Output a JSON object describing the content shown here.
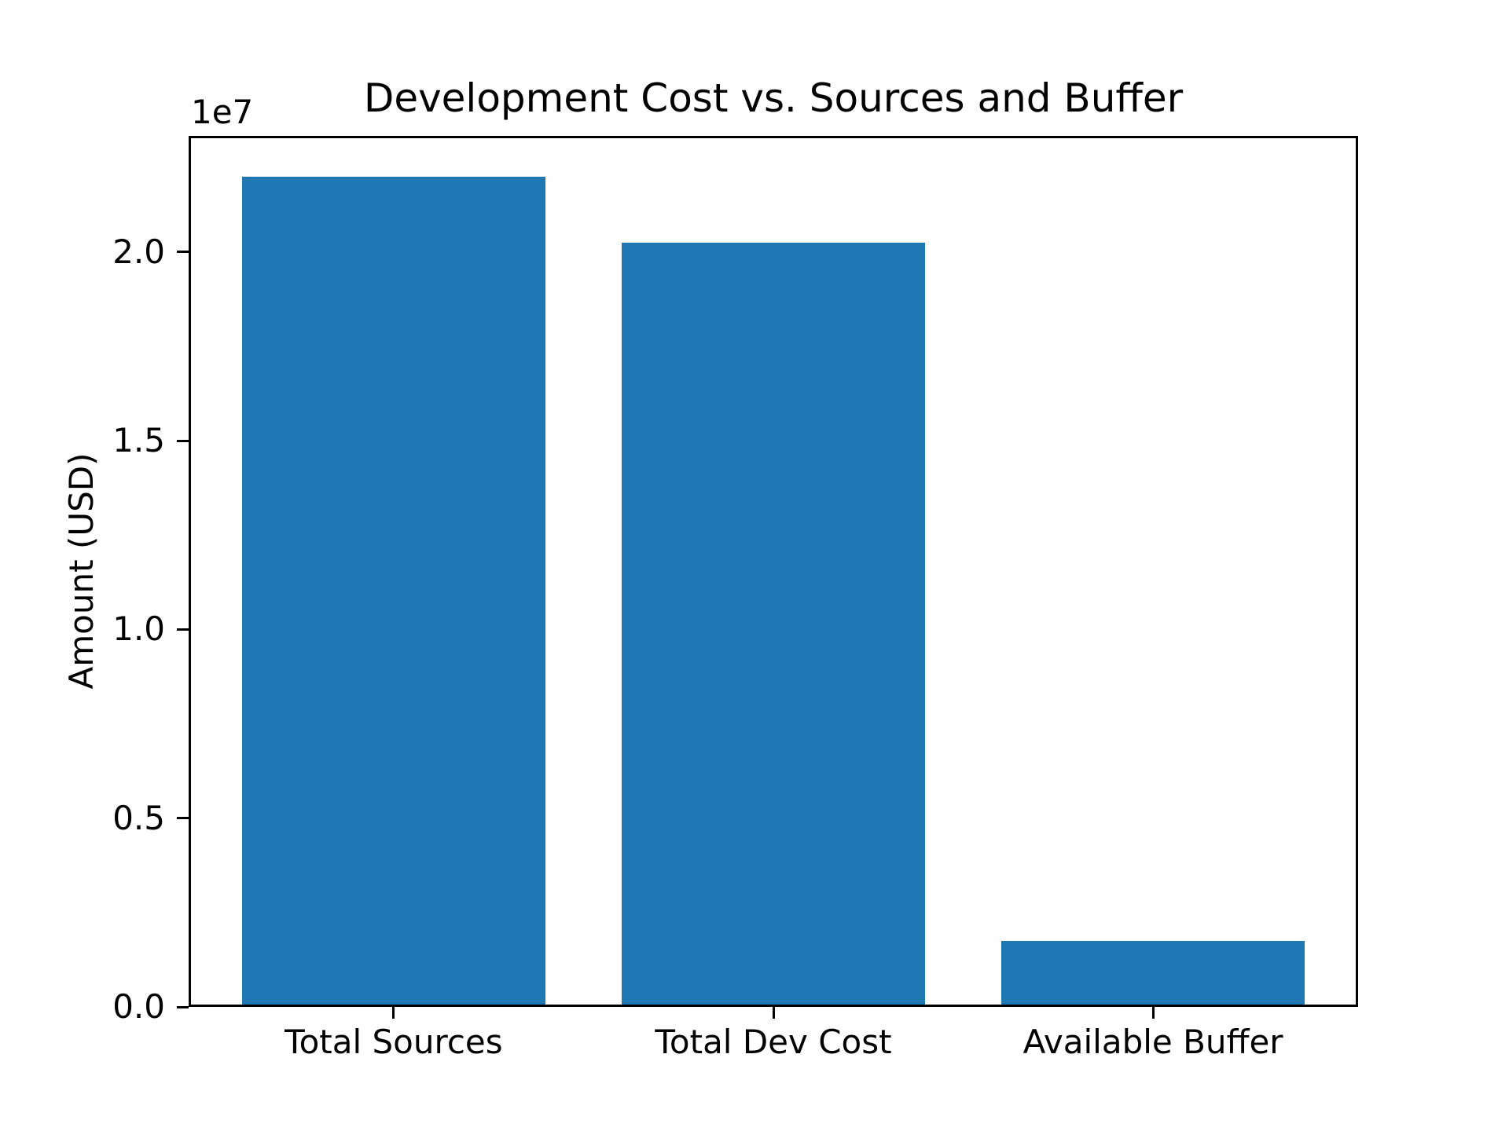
{
  "meta": {
    "background_color": "#ffffff",
    "text_color": "#000000",
    "spine_color": "#000000"
  },
  "chart_data": {
    "type": "bar",
    "title": "Development Cost vs. Sources and Buffer",
    "xlabel": "",
    "ylabel": "Amount (USD)",
    "offset_text": "1e7",
    "categories": [
      "Total Sources",
      "Total Dev Cost",
      "Available Buffer"
    ],
    "values": [
      22000000,
      20250000,
      1750000
    ],
    "bar_color": "#1f77b4",
    "bar_width": 0.8,
    "xlim": [
      -0.54,
      2.54
    ],
    "ylim": [
      0,
      23080000
    ],
    "yticks": [
      0,
      5000000,
      10000000,
      15000000,
      20000000
    ],
    "ytick_labels": [
      "0.0",
      "0.5",
      "1.0",
      "1.5",
      "2.0"
    ],
    "grid": false,
    "legend": false
  }
}
